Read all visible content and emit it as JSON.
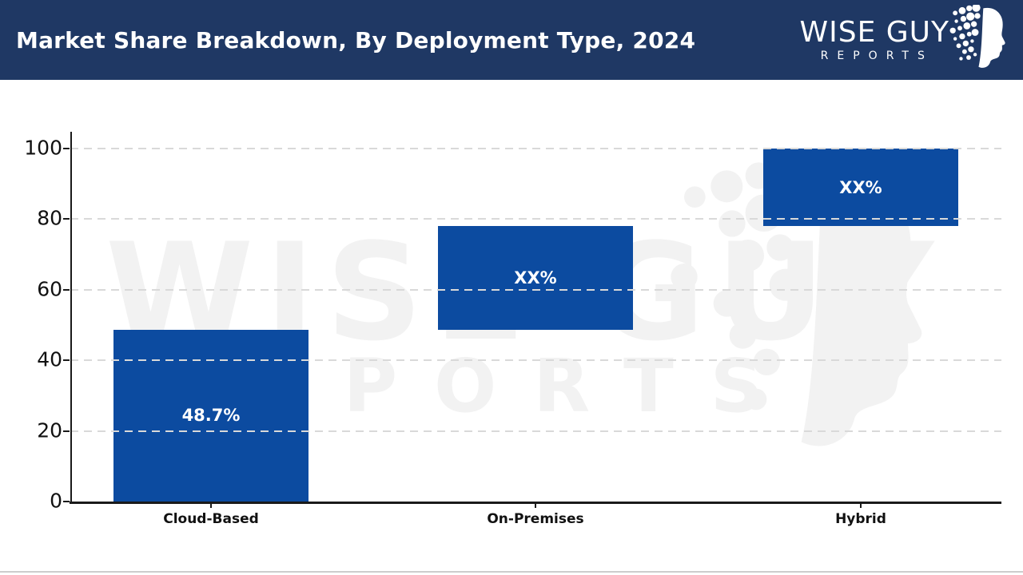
{
  "header": {
    "title": "Market Share Breakdown, By Deployment Type, 2024",
    "logo": {
      "line1": "WISE GUY",
      "line2": "REPORTS"
    }
  },
  "watermark": {
    "line1": "WISE GUY",
    "line2": "REPORTS"
  },
  "colors": {
    "header_bg": "#1f3864",
    "bar": "#0c4ba0",
    "grid": "#d9d9d9",
    "axis": "#1a1a1a",
    "bar_label": "#ffffff",
    "watermark": "#f2f2f2"
  },
  "chart_data": {
    "type": "bar",
    "variant": "floating-waterfall",
    "title": "Market Share Breakdown, By Deployment Type, 2024",
    "categories": [
      "Cloud-Based",
      "On-Premises",
      "Hybrid"
    ],
    "bars": [
      {
        "category": "Cloud-Based",
        "from": 0,
        "to": 48.7,
        "label": "48.7%"
      },
      {
        "category": "On-Premises",
        "from": 48.7,
        "to": 78,
        "label": "XX%"
      },
      {
        "category": "Hybrid",
        "from": 78,
        "to": 100,
        "label": "XX%"
      }
    ],
    "ylim": [
      0,
      100
    ],
    "yticks": [
      0,
      20,
      40,
      60,
      80,
      100
    ],
    "grid": "dashed-horizontal",
    "legend": null,
    "bar_color": "#0c4ba0",
    "value_labels_inside": true
  }
}
